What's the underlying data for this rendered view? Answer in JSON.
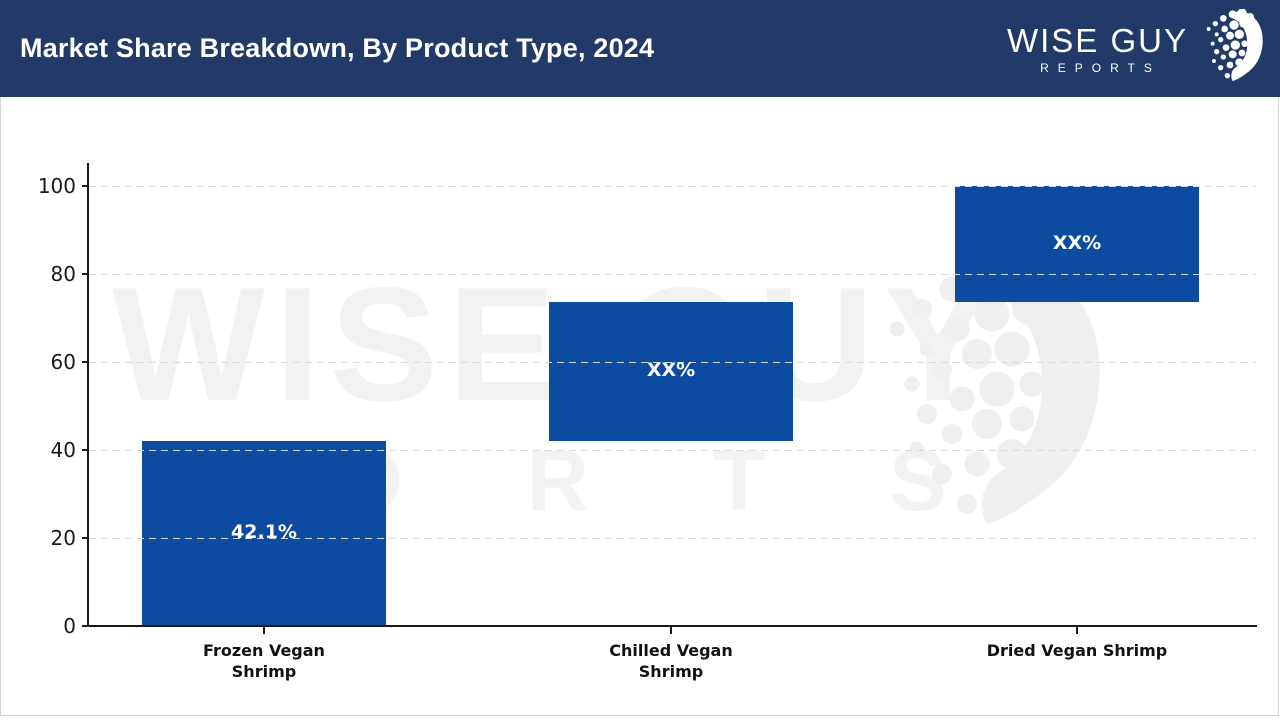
{
  "header": {
    "title": "Market Share Breakdown, By Product Type, 2024",
    "logo": {
      "name": "WISE GUY",
      "sub": "REPORTS"
    }
  },
  "watermark": {
    "line1": "WISE GUY",
    "line2": "R O R T S"
  },
  "chart_data": {
    "type": "bar",
    "subtype": "floating-segment-bars (waterfall-style market share breakdown)",
    "title": "Market Share Breakdown, By Product Type, 2024",
    "categories": [
      "Frozen Vegan Shrimp",
      "Chilled Vegan Shrimp",
      "Dried Vegan Shrimp"
    ],
    "category_label_lines": [
      "Frozen Vegan\nShrimp",
      "Chilled Vegan\nShrimp",
      "Dried Vegan Shrimp"
    ],
    "bars": [
      {
        "category": "Frozen Vegan Shrimp",
        "start": 0,
        "end": 42.1,
        "label": "42.1%"
      },
      {
        "category": "Chilled Vegan Shrimp",
        "start": 42.1,
        "end": 73.7,
        "label": "XX%"
      },
      {
        "category": "Dried Vegan Shrimp",
        "start": 73.7,
        "end": 100,
        "label": "XX%"
      }
    ],
    "xlabel": "",
    "ylabel": "",
    "ylim": [
      0,
      100
    ],
    "yticks": [
      0,
      20,
      40,
      60,
      80,
      100
    ],
    "grid": "horizontal-dashed",
    "legend": "none",
    "bar_color": "#0d4ba1"
  },
  "colors": {
    "header_bg": "#223a68",
    "bar": "#0d4ba1",
    "grid": "#d9d9d9",
    "watermark": "#f2f2f4",
    "frame": "#d6d6d6",
    "axis": "#1a1a1a"
  }
}
